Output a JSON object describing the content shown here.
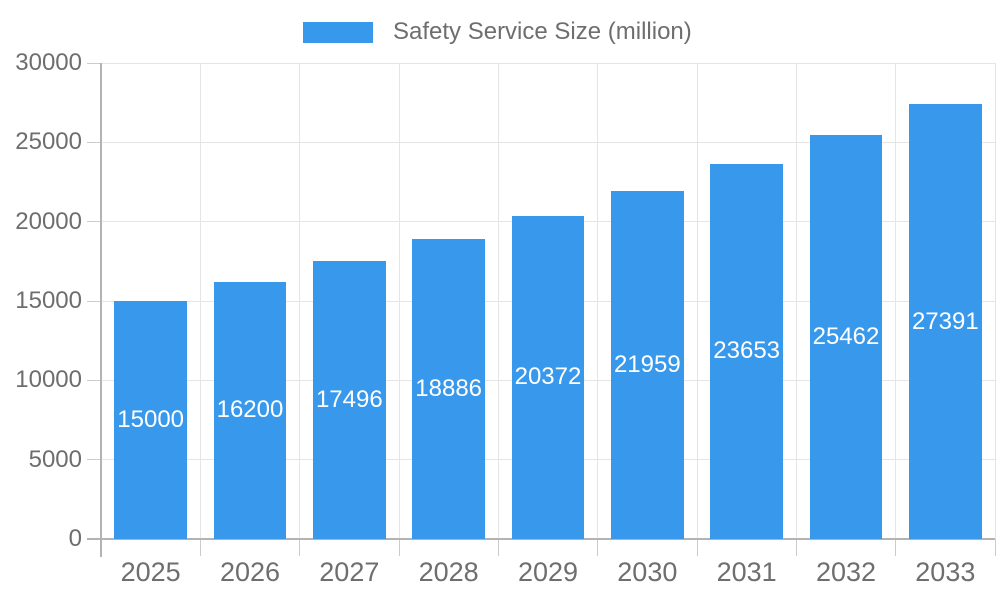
{
  "colors": {
    "bar": "#3898EC",
    "grid": "#e5e5e5",
    "axis": "#b3b3b3",
    "tick": "#cccccc",
    "text": "#6e6e6e",
    "bar_label": "#ffffff",
    "background": "#ffffff"
  },
  "chart_data": {
    "type": "bar",
    "title": "",
    "legend": "Safety Service Size (million)",
    "legend_position": "top",
    "categories": [
      "2025",
      "2026",
      "2027",
      "2028",
      "2029",
      "2030",
      "2031",
      "2032",
      "2033"
    ],
    "series": [
      {
        "name": "Safety Service Size (million)",
        "values": [
          15000,
          16200,
          17496,
          18886,
          20372,
          21959,
          23653,
          25462,
          27391
        ]
      }
    ],
    "xlabel": "",
    "ylabel": "",
    "ylim": [
      0,
      30000
    ],
    "ytick_step": 5000,
    "yticks": [
      0,
      5000,
      10000,
      15000,
      20000,
      25000,
      30000
    ],
    "grid": true,
    "value_labels": "inside-center"
  }
}
